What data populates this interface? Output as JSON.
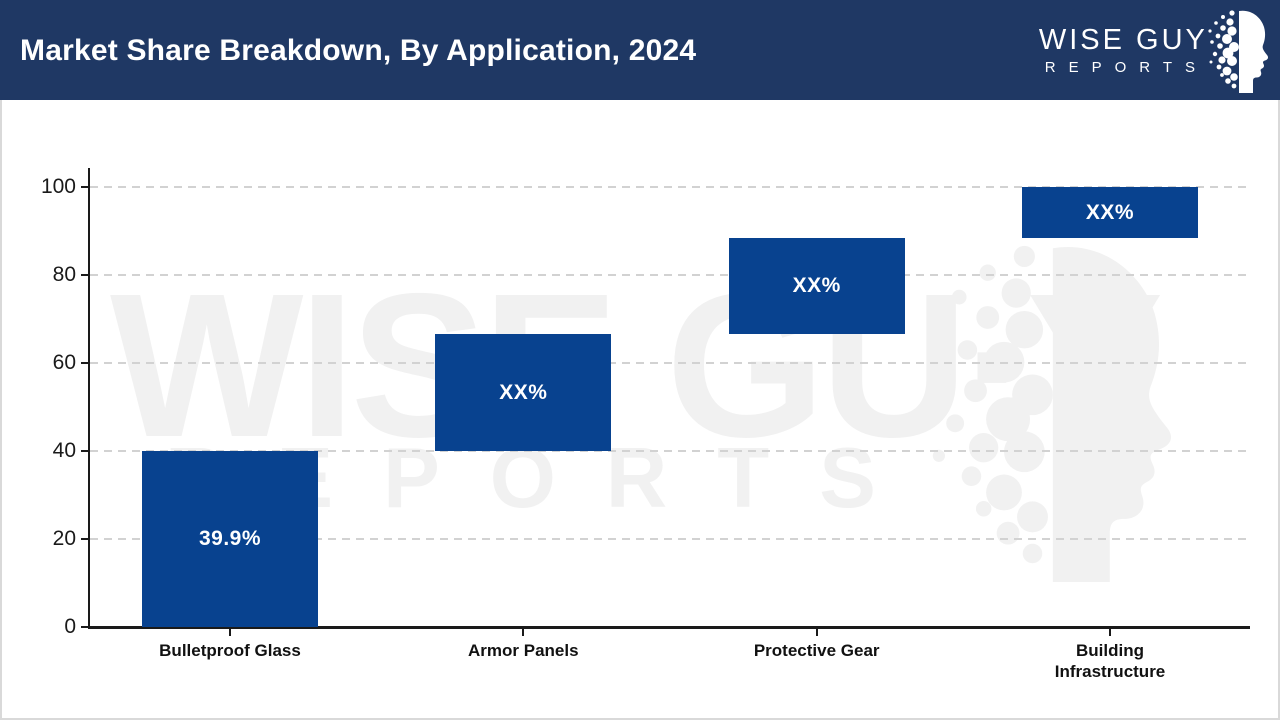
{
  "header": {
    "title": "Market Share Breakdown, By Application, 2024",
    "brand": {
      "name_line": "WISE GUY",
      "reports_line": "REPORTS"
    }
  },
  "watermark": {
    "line1": "WISE GU·Y",
    "line2": "REPORTS"
  },
  "colors": {
    "header_bg": "#1f3864",
    "bar_fill": "#08428f",
    "bar_label_text": "#ffffff",
    "axis": "#1a1a1a",
    "gridline": "#d2d2d2",
    "tick_label": "#1a1a1a",
    "watermark": "#f1f1f1",
    "page_border": "#d9d9d9"
  },
  "chart_data": {
    "type": "bar",
    "subtype": "floating-waterfall",
    "title": "Market Share Breakdown, By Application, 2024",
    "categories": [
      "Bulletproof Glass",
      "Armor Panels",
      "Protective Gear",
      "Building Infrastructure"
    ],
    "segments": [
      {
        "category": "Bulletproof Glass",
        "start": 0,
        "end": 39.9,
        "label": "39.9%",
        "value_estimated": 39.9
      },
      {
        "category": "Armor Panels",
        "start": 39.9,
        "end": 66.5,
        "label": "XX%",
        "value_estimated": 26.6
      },
      {
        "category": "Protective Gear",
        "start": 66.5,
        "end": 88.4,
        "label": "XX%",
        "value_estimated": 21.9
      },
      {
        "category": "Building Infrastructure",
        "start": 88.4,
        "end": 100,
        "label": "XX%",
        "value_estimated": 11.6
      }
    ],
    "xlabel": "",
    "ylabel": "",
    "ylim": [
      0,
      100
    ],
    "yticks": [
      0,
      20,
      40,
      60,
      80,
      100
    ],
    "grid": "horizontal-dashed",
    "legend": "none",
    "bar_color": "#08428f",
    "value_labels_inside_bars": true
  }
}
